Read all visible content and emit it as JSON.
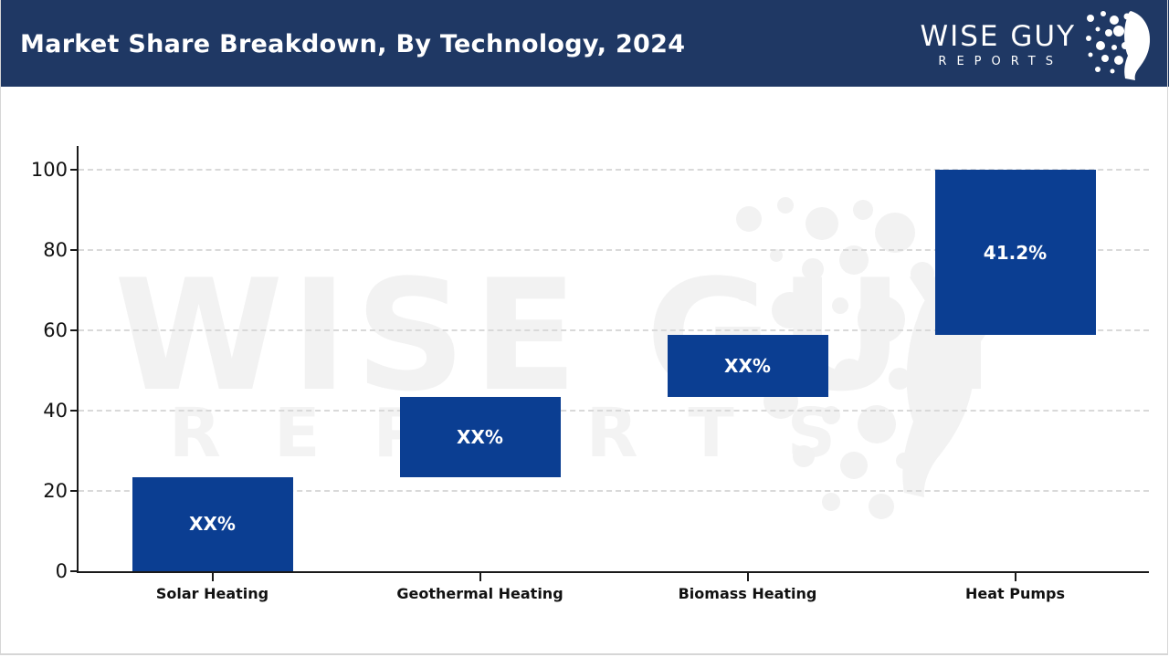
{
  "header": {
    "title": "Market Share Breakdown, By Technology, 2024",
    "logo": {
      "line1": "WISE GUY",
      "line2": "REPORTS"
    }
  },
  "watermark": {
    "line1": "WISE GUY",
    "line2": "REPORTS"
  },
  "colors": {
    "header_bg": "#1f3864",
    "bar": "#0b3e92",
    "bar_label": "#ffffff",
    "grid": "#d9d9d9",
    "axis": "#1a1a1a",
    "watermark": "#f2f2f2"
  },
  "chart_data": {
    "type": "bar",
    "subtype": "waterfall",
    "title": "Market Share Breakdown, By Technology, 2024",
    "xlabel": "",
    "ylabel": "",
    "categories": [
      "Solar Heating",
      "Geothermal Heating",
      "Biomass Heating",
      "Heat Pumps"
    ],
    "segments": [
      {
        "category": "Solar Heating",
        "start": 0,
        "end": 23.5,
        "value": 23.5,
        "label": "XX%"
      },
      {
        "category": "Geothermal Heating",
        "start": 23.5,
        "end": 43.5,
        "value": 20.0,
        "label": "XX%"
      },
      {
        "category": "Biomass Heating",
        "start": 43.5,
        "end": 58.8,
        "value": 15.3,
        "label": "XX%"
      },
      {
        "category": "Heat Pumps",
        "start": 58.8,
        "end": 100,
        "value": 41.2,
        "label": "41.2%"
      }
    ],
    "y_ticks": [
      0,
      20,
      40,
      60,
      80,
      100
    ],
    "ylim": [
      0,
      105
    ],
    "grid": "horizontal dashed",
    "legend": "none",
    "bar_color": "#0b3e92"
  }
}
